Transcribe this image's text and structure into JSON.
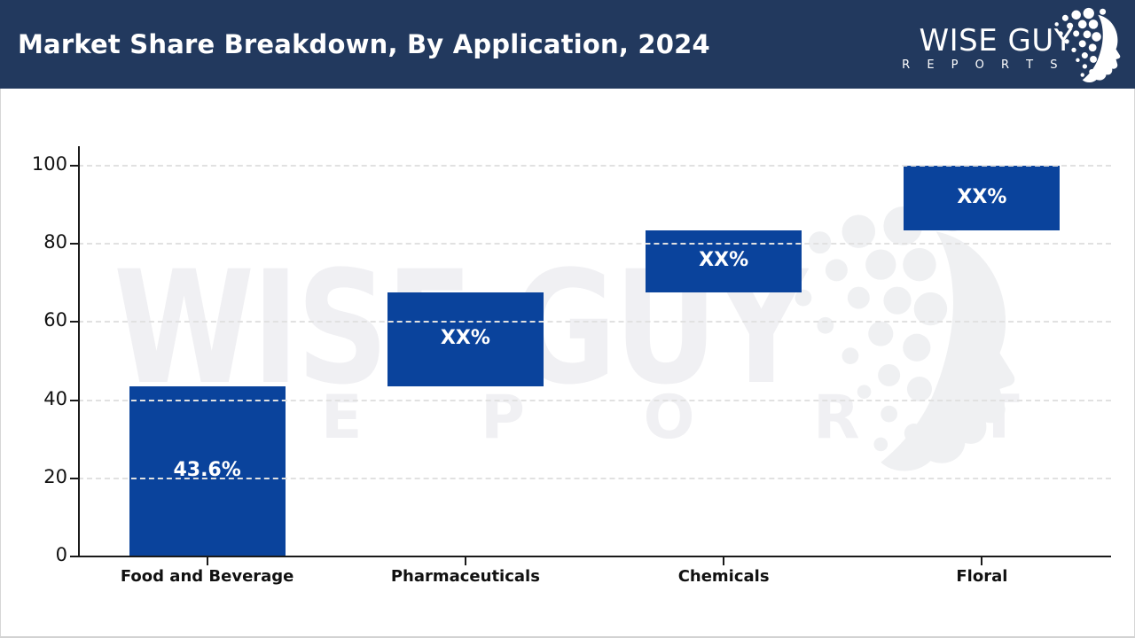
{
  "header": {
    "title": "Market Share Breakdown, By Application, 2024",
    "bg_color": "#22395e",
    "logo": {
      "line1": "WISE GUY",
      "line2": "R E P O R T S"
    }
  },
  "watermark": {
    "line1": "WISE GUY",
    "line2": "R E P O R T S"
  },
  "chart_data": {
    "type": "bar",
    "subtype": "waterfall",
    "title": "Market Share Breakdown, By Application, 2024",
    "categories": [
      "Food and Beverage",
      "Pharmaceuticals",
      "Chemicals",
      "Floral"
    ],
    "segments": [
      {
        "category": "Food and Beverage",
        "start": 0,
        "end": 43.6,
        "label": "43.6%"
      },
      {
        "category": "Pharmaceuticals",
        "start": 43.6,
        "end": 67.5,
        "label": "XX%"
      },
      {
        "category": "Chemicals",
        "start": 67.5,
        "end": 83.4,
        "label": "XX%"
      },
      {
        "category": "Floral",
        "start": 83.4,
        "end": 100,
        "label": "XX%"
      }
    ],
    "ylim": [
      0,
      100
    ],
    "yticks": [
      0,
      20,
      40,
      60,
      80,
      100
    ],
    "grid": "horizontal-dashed",
    "legend": "none",
    "bar_color": "#0a439c",
    "bar_label_color": "#ffffff",
    "axis_color": "#1a1a1a"
  }
}
